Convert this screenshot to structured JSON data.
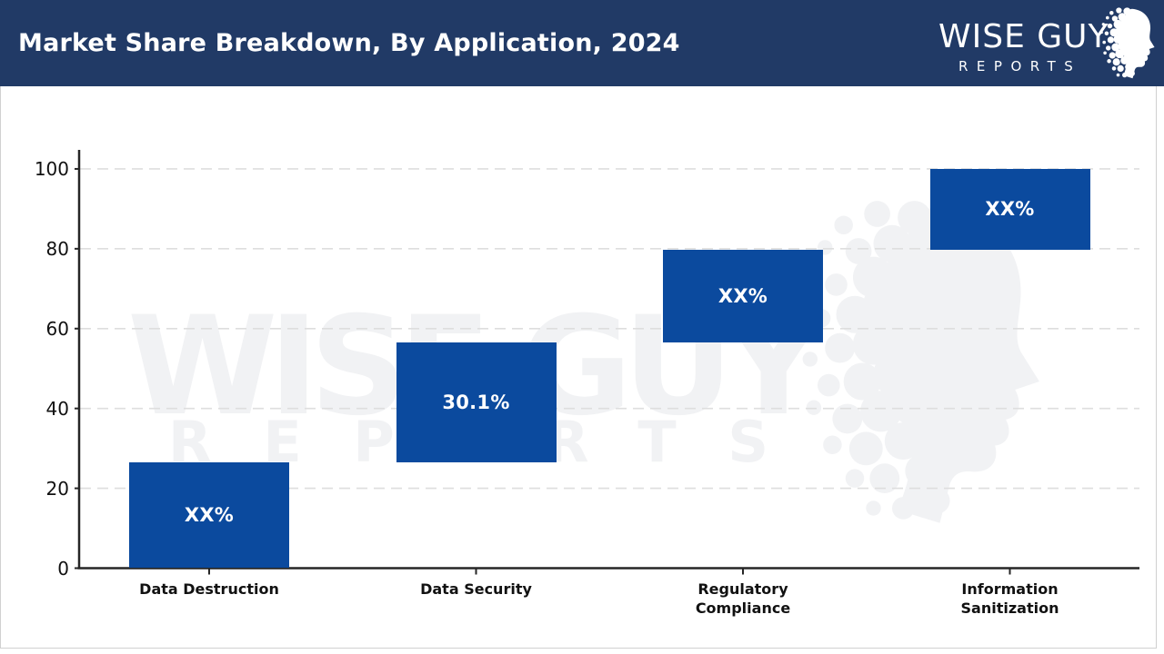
{
  "header": {
    "title": "Market Share Breakdown, By Application, 2024",
    "logo": {
      "line1": "WISE GUY",
      "line2": "REPORTS"
    }
  },
  "watermark": {
    "line1": "WISE GUY",
    "line2": "REPORTS"
  },
  "colors": {
    "header_bg": "#213A66",
    "title_text": "#FFFFFF",
    "bar_fill": "#0B4A9E",
    "bar_label_text": "#FFFFFF",
    "axis_line": "#262626",
    "tick_label_text": "#111111",
    "gridline": "#DEDEDE",
    "watermark_gray": "#F1F2F4",
    "card_border": "#D0D0D0"
  },
  "chart_data": {
    "type": "bar",
    "subtype": "waterfall-segment-bars",
    "title": "Market Share Breakdown, By Application, 2024",
    "xlabel": "",
    "ylabel": "",
    "categories": [
      "Data Destruction",
      "Data Security",
      "Regulatory Compliance",
      "Information Sanitization"
    ],
    "category_label_lines": [
      [
        "Data Destruction"
      ],
      [
        "Data Security"
      ],
      [
        "Regulatory",
        "Compliance"
      ],
      [
        "Information",
        "Sanitization"
      ]
    ],
    "segments": [
      {
        "category": "Data Destruction",
        "start": 0,
        "end": 26.5,
        "label": "XX%"
      },
      {
        "category": "Data Security",
        "start": 26.5,
        "end": 56.6,
        "label": "30.1%"
      },
      {
        "category": "Regulatory Compliance",
        "start": 56.6,
        "end": 79.8,
        "label": "XX%"
      },
      {
        "category": "Information Sanitization",
        "start": 79.8,
        "end": 100,
        "label": "XX%"
      }
    ],
    "y_ticks": [
      0,
      20,
      40,
      60,
      80,
      100
    ],
    "ylim": [
      0,
      104.8
    ],
    "grid": "horizontal-dashed",
    "legend": "none"
  }
}
